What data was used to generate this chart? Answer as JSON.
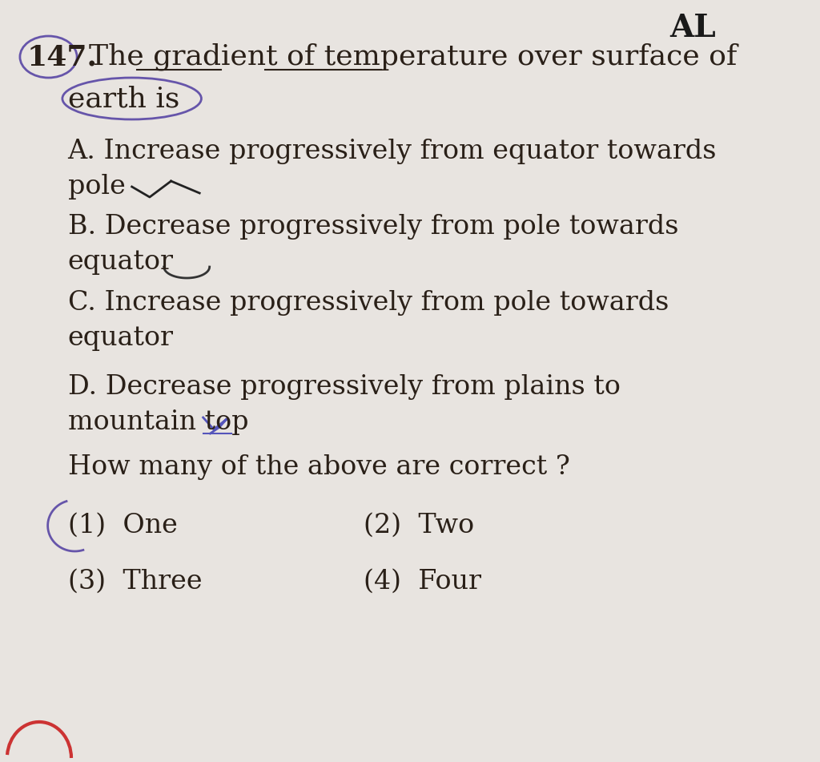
{
  "background_color": "#e8e4e0",
  "text_color": "#2a2018",
  "corner_text": "AL",
  "question_number": "147.",
  "question_line1": "The gradient of temperature over surface of",
  "question_line2": "earth is",
  "option_A1": "A. Increase progressively from equator towards",
  "option_A2": "pole",
  "option_B1": "B. Decrease progressively from pole towards",
  "option_B2": "equator",
  "option_C1": "C. Increase progressively from pole towards",
  "option_C2": "equator",
  "option_D1": "D. Decrease progressively from plains to",
  "option_D2": "mountain top",
  "footer": "How many of the above are correct ?",
  "ans1": "(1)  One",
  "ans2": "(2)  Two",
  "ans3": "(3)  Three",
  "ans4": "(4)  Four",
  "ellipse_color": "#6655aa",
  "annotation_color": "#333333",
  "corner_color": "#1a1a1a",
  "bottom_circle_color": "#cc3333",
  "font_size_q": 26,
  "font_size_opt": 24,
  "font_size_ans": 24,
  "font_size_corner": 28
}
